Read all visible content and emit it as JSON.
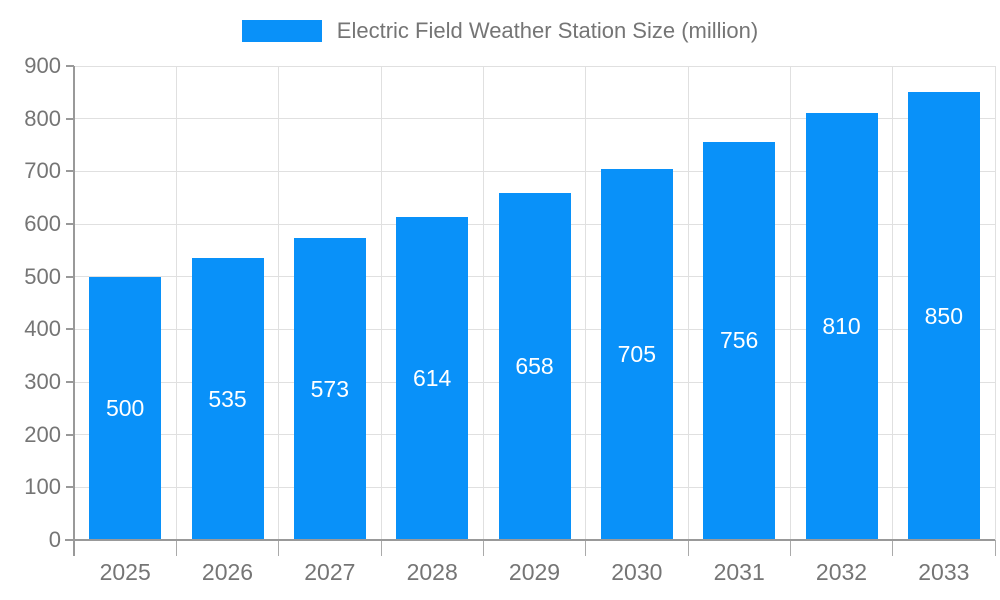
{
  "legend": {
    "label": "Electric Field Weather Station Size (million)",
    "swatch_color": "#0991f9"
  },
  "chart_data": {
    "type": "bar",
    "title": "",
    "xlabel": "",
    "ylabel": "",
    "categories": [
      "2025",
      "2026",
      "2027",
      "2028",
      "2029",
      "2030",
      "2031",
      "2032",
      "2033"
    ],
    "series": [
      {
        "name": "Electric Field Weather Station Size (million)",
        "values": [
          500,
          535,
          573,
          614,
          658,
          705,
          756,
          810,
          850
        ]
      }
    ],
    "value_labels_shown": true,
    "ylim": [
      0,
      900
    ],
    "yticks": [
      0,
      100,
      200,
      300,
      400,
      500,
      600,
      700,
      800,
      900
    ],
    "grid": "horizontal-and-vertical",
    "legend_position": "top-center",
    "colors": {
      "bar": "#0991f9",
      "value_label": "#ffffff",
      "axis_line": "#999999",
      "grid_line": "#e0e0e0",
      "axis_text": "#757575"
    }
  }
}
